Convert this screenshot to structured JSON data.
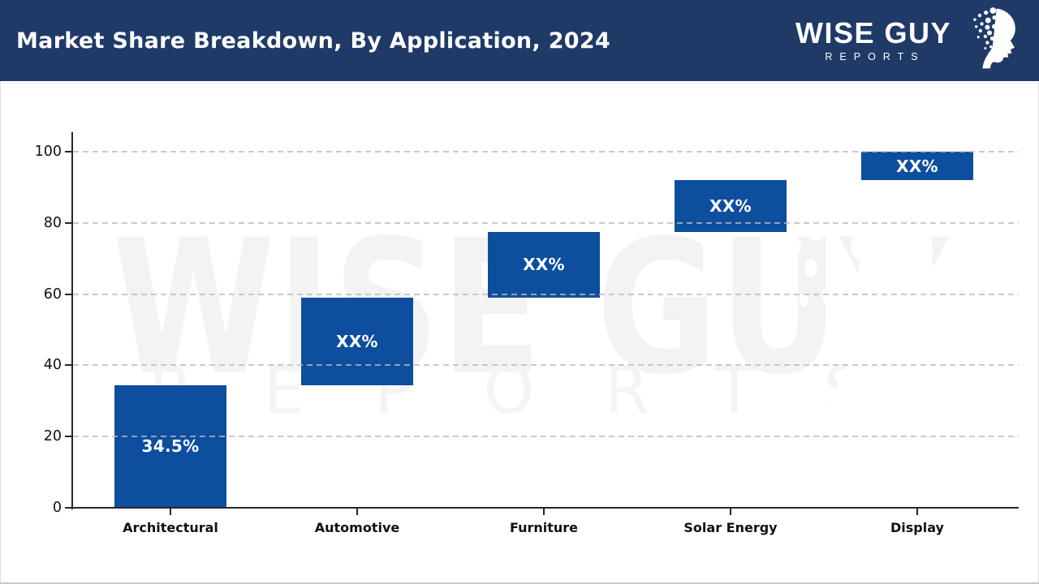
{
  "header": {
    "title": "Market Share Breakdown, By Application, 2024",
    "logo": {
      "line1": "WISE GUY",
      "line2": "REPORTS"
    }
  },
  "watermark": {
    "line1": "WISE GUY",
    "line2": "REPORTS"
  },
  "chart_data": {
    "type": "bar",
    "subtype": "waterfall",
    "title": "Market Share Breakdown, By Application, 2024",
    "categories": [
      "Architectural",
      "Automotive",
      "Furniture",
      "Solar Energy",
      "Display"
    ],
    "series": [
      {
        "name": "Market Share (%)",
        "segments": [
          {
            "category": "Architectural",
            "start": 0,
            "end": 34.5,
            "label": "34.5%"
          },
          {
            "category": "Automotive",
            "start": 34.5,
            "end": 59,
            "label": "XX%"
          },
          {
            "category": "Furniture",
            "start": 59,
            "end": 77.5,
            "label": "XX%"
          },
          {
            "category": "Solar Energy",
            "start": 77.5,
            "end": 92,
            "label": "XX%"
          },
          {
            "category": "Display",
            "start": 92,
            "end": 100,
            "label": "XX%"
          }
        ]
      }
    ],
    "xlabel": "",
    "ylabel": "",
    "ylim": [
      0,
      100
    ],
    "yticks": [
      0,
      20,
      40,
      60,
      80,
      100
    ],
    "grid": "horizontal-dashed",
    "legend": "none"
  },
  "colors": {
    "header_bg": "#203a68",
    "bar": "#0d4e9f",
    "bar_label": "#ffffff",
    "grid": "#bababa",
    "axis": "#262626",
    "watermark": "#f3f3f3"
  }
}
